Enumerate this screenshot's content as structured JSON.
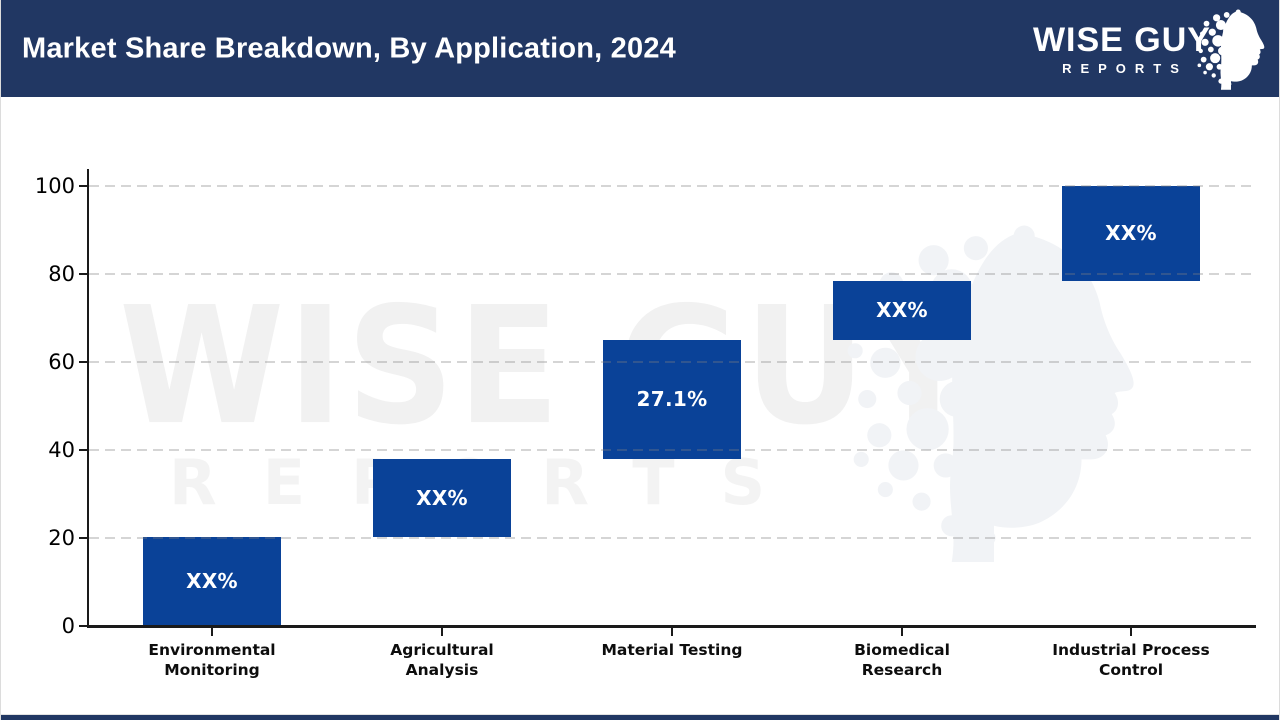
{
  "header": {
    "title": "Market Share Breakdown, By Application, 2024",
    "logo": {
      "name": "WISE GUY",
      "tagline": "REPORTS"
    }
  },
  "watermark": {
    "line1": "WISE GUY",
    "line2": "REPORTS"
  },
  "chart_data": {
    "type": "bar",
    "subtype": "waterfall-cumulative-share",
    "title": "Market Share Breakdown, By Application, 2024",
    "categories": [
      "Environmental\nMonitoring",
      "Agricultural\nAnalysis",
      "Material Testing",
      "Biomedical\nResearch",
      "Industrial Process\nControl"
    ],
    "segments": [
      {
        "category": "Environmental Monitoring",
        "label": "XX%",
        "start": 0,
        "end": 20.3
      },
      {
        "category": "Agricultural Analysis",
        "label": "XX%",
        "start": 20.3,
        "end": 38.0
      },
      {
        "category": "Material Testing",
        "label": "27.1%",
        "start": 38.0,
        "end": 65.1
      },
      {
        "category": "Biomedical Research",
        "label": "XX%",
        "start": 65.1,
        "end": 78.5
      },
      {
        "category": "Industrial Process Control",
        "label": "XX%",
        "start": 78.5,
        "end": 100
      }
    ],
    "ylim": [
      0,
      104
    ],
    "yticks": [
      0,
      20,
      40,
      60,
      80,
      100
    ],
    "grid": "horizontal-dashed",
    "legend": "none",
    "bar_color": "#0a4298",
    "bar_label_color": "#ffffff"
  },
  "colors": {
    "header_bg": "#213763",
    "footer_bg": "#213763",
    "bar": "#0a4298",
    "gridline": "#d8d8d8",
    "axis": "#1a1a1a",
    "watermark": "#f1f1f1"
  }
}
